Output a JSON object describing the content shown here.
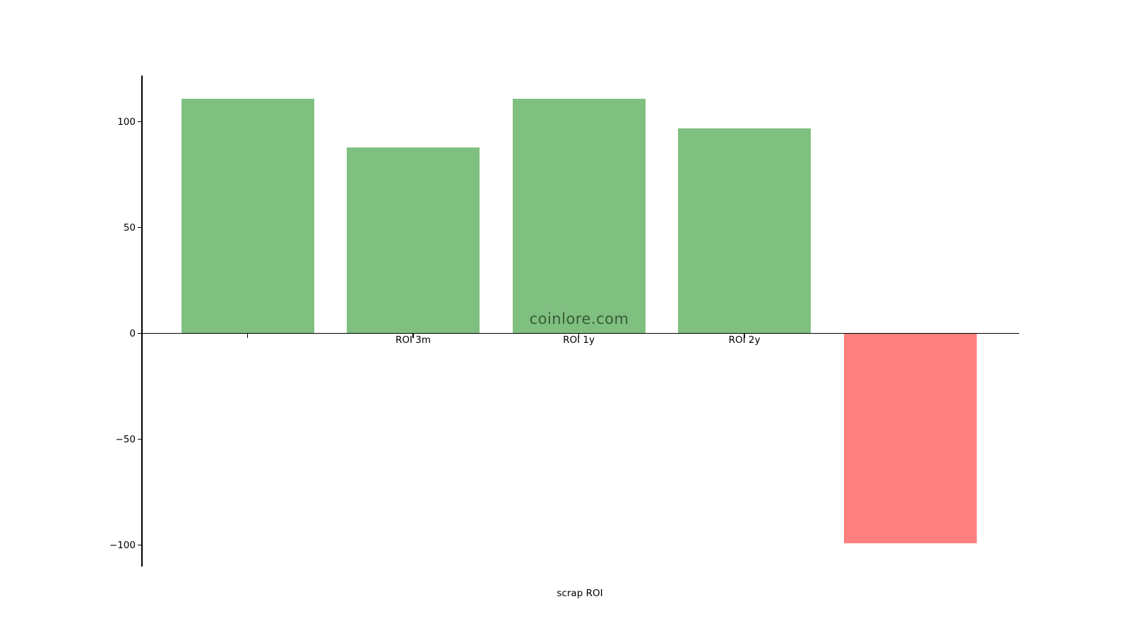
{
  "page": {
    "background_color": "#ffffff"
  },
  "chart_data": {
    "type": "bar",
    "title": "",
    "xlabel": "scrap ROI",
    "ylabel": "",
    "categories": [
      "",
      "ROI 3m",
      "ROI 1y",
      "ROI 2y",
      ""
    ],
    "values": [
      111,
      88,
      111,
      97,
      -99
    ],
    "positive_color": "#7fbf7f",
    "negative_color": "#ff7f7f",
    "axis_color": "#000000",
    "yticks": [
      100,
      50,
      0,
      -50,
      -100
    ],
    "ytick_labels": [
      "100",
      "50",
      "0",
      "−50",
      "−100"
    ],
    "x_tick_marks_visible": [
      true,
      true,
      true,
      true,
      false
    ],
    "ylim": [
      -110,
      122
    ],
    "grid": false,
    "legend": null,
    "zero_baseline": true,
    "watermark": "coinlore.com"
  }
}
